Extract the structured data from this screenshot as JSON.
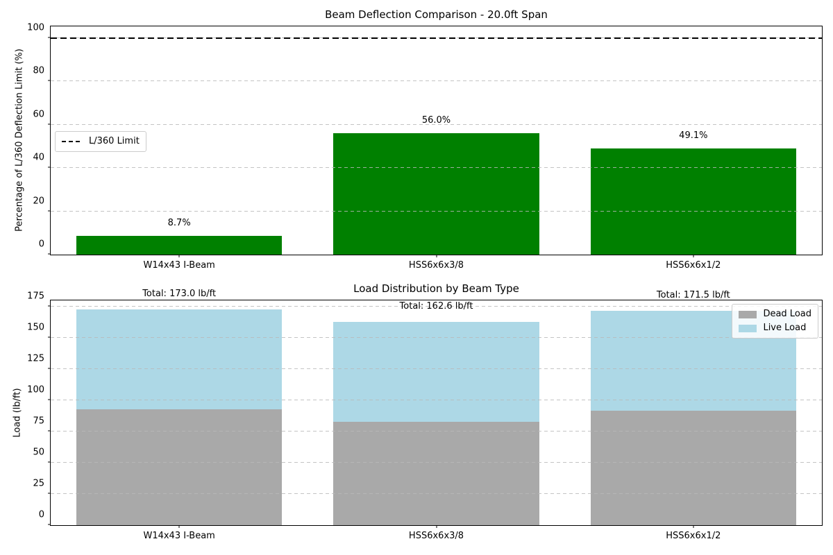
{
  "figure": {
    "background": "#ffffff",
    "text_color": "#000000",
    "grid_color": "#c9c9c9"
  },
  "chart_data": [
    {
      "type": "bar",
      "title": "Beam Deflection Comparison - 20.0ft Span",
      "ylabel": "Percentage of L/360 Deflection Limit (%)",
      "categories": [
        "W14x43 I-Beam",
        "HSS6x6x3/8",
        "HSS6x6x1/2"
      ],
      "values": [
        8.7,
        56.0,
        49.1
      ],
      "bar_labels": [
        "8.7%",
        "56.0%",
        "49.1%"
      ],
      "bar_color": "#008000",
      "ylim": [
        0,
        105.3
      ],
      "yticks": [
        0,
        20,
        40,
        60,
        80,
        100
      ],
      "grid": "dashed-horizontal",
      "limit_line": {
        "value": 100,
        "color": "#000000",
        "style": "dashed",
        "legend_label": "L/360 Limit"
      },
      "legend_position": "center-left"
    },
    {
      "type": "stacked_bar",
      "title": "Load Distribution by Beam Type",
      "ylabel": "Load (lb/ft)",
      "categories": [
        "W14x43 I-Beam",
        "HSS6x6x3/8",
        "HSS6x6x1/2"
      ],
      "series": [
        {
          "name": "Dead Load",
          "color": "#a9a9a9",
          "values": [
            93.0,
            82.6,
            91.5
          ]
        },
        {
          "name": "Live Load",
          "color": "#add8e6",
          "values": [
            80.0,
            80.0,
            80.0
          ]
        }
      ],
      "totals": [
        173.0,
        162.6,
        171.5
      ],
      "total_labels": [
        "Total: 173.0 lb/ft",
        "Total: 162.6 lb/ft",
        "Total: 171.5 lb/ft"
      ],
      "ylim": [
        0,
        180
      ],
      "yticks": [
        0,
        25,
        50,
        75,
        100,
        125,
        150,
        175
      ],
      "grid": "dashed-horizontal",
      "legend_position": "upper-right"
    }
  ]
}
